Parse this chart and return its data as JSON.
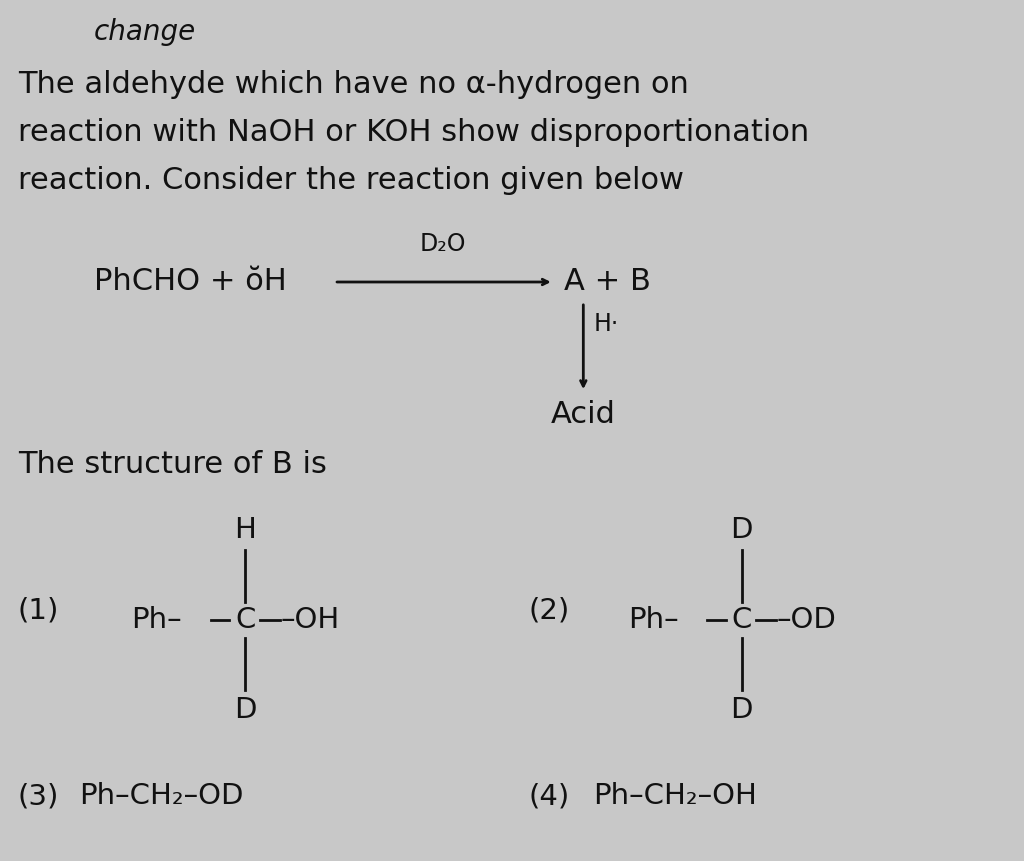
{
  "background_color": "#c8c8c8",
  "title_word": "change",
  "para_line1": "The aldehyde which have no α-hydrogen on",
  "para_line2": "reaction with NaOH or KOH show disproportionation",
  "para_line3": "reaction. Consider the reaction given below",
  "rxn_left": "PhCHO + ŏH",
  "rxn_label": "D₂O",
  "rxn_right": "A + B",
  "rxn_down_label": "H·",
  "rxn_down_text": "Acid",
  "structure_header": "The structure of B is",
  "opt1": "(1)",
  "opt2": "(2)",
  "opt3": "(3)",
  "opt4": "(4)",
  "opt3_text": "Ph–CH₂–OD",
  "opt4_text": "Ph–CH₂–OH",
  "text_color": "#111111",
  "fs_title": 20,
  "fs_body": 22,
  "fs_small": 17,
  "fs_struct": 21,
  "fs_opt": 21
}
